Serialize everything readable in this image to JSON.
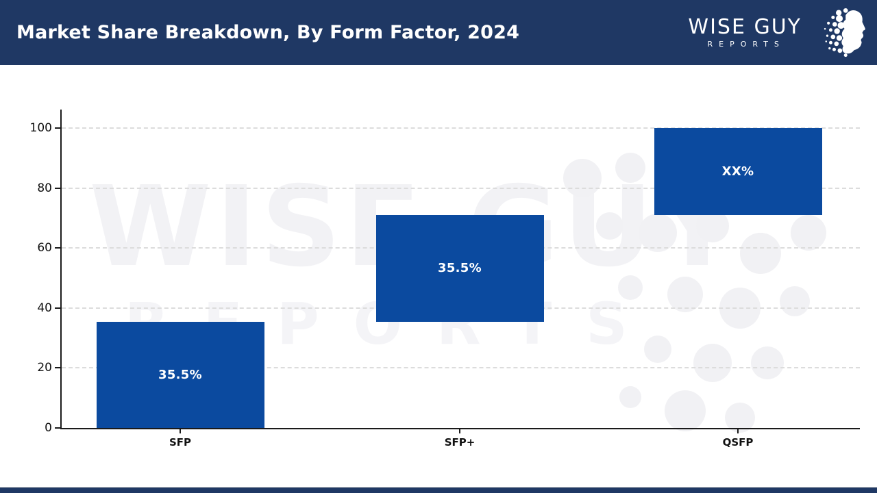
{
  "header": {
    "title": "Market Share Breakdown, By Form Factor, 2024",
    "logo_line1": "WISE GUY",
    "logo_line2": "REPORTS"
  },
  "watermark": {
    "line1": "WISE GUY",
    "line2": "REPORTS"
  },
  "colors": {
    "header_bg": "#1f3864",
    "bar": "#0b4a9f",
    "grid": "#dcdcdc",
    "axis": "#1a1a1a",
    "watermark": "#f2f2f5"
  },
  "chart_data": {
    "type": "bar",
    "subtype": "floating-waterfall",
    "title": "Market Share Breakdown, By Form Factor, 2024",
    "categories": [
      "SFP",
      "SFP+",
      "QSFP"
    ],
    "segments": [
      {
        "category": "SFP",
        "start": 0,
        "end": 35.5,
        "label": "35.5%"
      },
      {
        "category": "SFP+",
        "start": 35.5,
        "end": 71,
        "label": "35.5%"
      },
      {
        "category": "QSFP",
        "start": 71,
        "end": 100,
        "label": "XX%"
      }
    ],
    "y_ticks": [
      0,
      20,
      40,
      60,
      80,
      100
    ],
    "ylim": [
      0,
      106
    ],
    "xlabel": "",
    "ylabel": "",
    "grid": "horizontal-dashed",
    "legend": "none",
    "bar_color": "#0b4a9f",
    "bar_label_color": "#ffffff"
  }
}
